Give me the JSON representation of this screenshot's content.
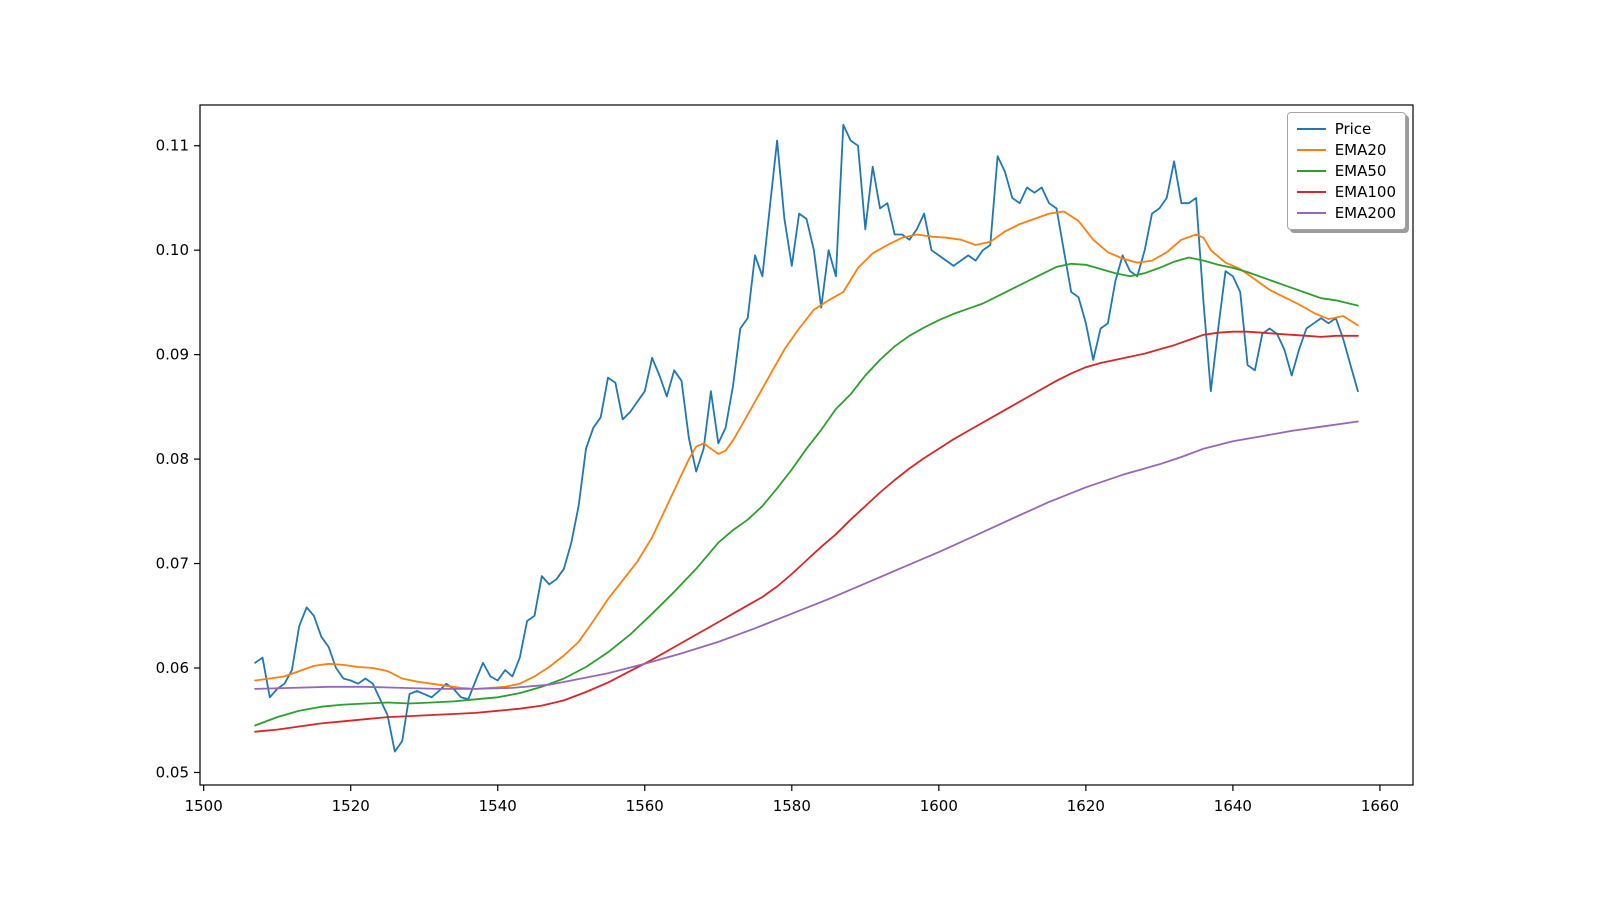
{
  "chart_data": {
    "type": "line",
    "title": "",
    "xlabel": "",
    "ylabel": "",
    "grid": false,
    "legend_position": "upper right",
    "xlim": [
      1499.5,
      1664.5
    ],
    "ylim": [
      0.0488,
      0.1139
    ],
    "x_ticks": [
      {
        "value": 1500,
        "label": "1500"
      },
      {
        "value": 1520,
        "label": "1520"
      },
      {
        "value": 1540,
        "label": "1540"
      },
      {
        "value": 1560,
        "label": "1560"
      },
      {
        "value": 1580,
        "label": "1580"
      },
      {
        "value": 1600,
        "label": "1600"
      },
      {
        "value": 1620,
        "label": "1620"
      },
      {
        "value": 1640,
        "label": "1640"
      },
      {
        "value": 1660,
        "label": "1660"
      }
    ],
    "y_ticks": [
      {
        "value": 0.05,
        "label": "0.05"
      },
      {
        "value": 0.06,
        "label": "0.06"
      },
      {
        "value": 0.07,
        "label": "0.07"
      },
      {
        "value": 0.08,
        "label": "0.08"
      },
      {
        "value": 0.09,
        "label": "0.09"
      },
      {
        "value": 0.1,
        "label": "0.10"
      },
      {
        "value": 0.11,
        "label": "0.11"
      }
    ],
    "series": [
      {
        "name": "Price",
        "color": "#1f77b4",
        "x_start": 1507,
        "x_step": 1,
        "values": [
          0.0605,
          0.061,
          0.0572,
          0.058,
          0.0585,
          0.0598,
          0.064,
          0.0658,
          0.065,
          0.063,
          0.062,
          0.06,
          0.059,
          0.0588,
          0.0585,
          0.059,
          0.0585,
          0.057,
          0.0555,
          0.052,
          0.053,
          0.0575,
          0.0578,
          0.0575,
          0.0572,
          0.0578,
          0.0585,
          0.058,
          0.0572,
          0.057,
          0.0588,
          0.0605,
          0.0592,
          0.0588,
          0.0598,
          0.0592,
          0.061,
          0.0645,
          0.065,
          0.0688,
          0.068,
          0.0685,
          0.0695,
          0.072,
          0.0755,
          0.081,
          0.083,
          0.084,
          0.0878,
          0.0873,
          0.0838,
          0.0845,
          0.0855,
          0.0865,
          0.0897,
          0.088,
          0.086,
          0.0885,
          0.0875,
          0.082,
          0.0788,
          0.081,
          0.0865,
          0.0815,
          0.083,
          0.087,
          0.0925,
          0.0935,
          0.0995,
          0.0975,
          0.104,
          0.1105,
          0.103,
          0.0985,
          0.1035,
          0.103,
          0.1,
          0.0945,
          0.1,
          0.0975,
          0.112,
          0.1105,
          0.11,
          0.102,
          0.108,
          0.104,
          0.1045,
          0.1015,
          0.1015,
          0.101,
          0.102,
          0.1035,
          0.1,
          0.0995,
          0.099,
          0.0985,
          0.099,
          0.0995,
          0.099,
          0.1,
          0.1005,
          0.109,
          0.1075,
          0.105,
          0.1045,
          0.106,
          0.1055,
          0.106,
          0.1045,
          0.104,
          0.1,
          0.096,
          0.0955,
          0.093,
          0.0895,
          0.0925,
          0.093,
          0.097,
          0.0995,
          0.098,
          0.0975,
          0.1,
          0.1035,
          0.104,
          0.105,
          0.1085,
          0.1045,
          0.1045,
          0.105,
          0.095,
          0.0865,
          0.0925,
          0.098,
          0.0975,
          0.096,
          0.089,
          0.0885,
          0.092,
          0.0925,
          0.092,
          0.0905,
          0.088,
          0.0905,
          0.0925,
          0.093,
          0.0935,
          0.093,
          0.0935,
          0.0915,
          0.089,
          0.0865
        ]
      },
      {
        "name": "EMA20",
        "color": "#ff7f0e",
        "x": [
          1507,
          1509,
          1511,
          1513,
          1515,
          1517,
          1519,
          1521,
          1523,
          1525,
          1527,
          1529,
          1531,
          1533,
          1535,
          1537,
          1539,
          1541,
          1543,
          1545,
          1547,
          1549,
          1551,
          1553,
          1555,
          1557,
          1559,
          1561,
          1563,
          1565,
          1566,
          1567,
          1568,
          1569,
          1570,
          1571,
          1572,
          1573,
          1575,
          1577,
          1579,
          1581,
          1583,
          1585,
          1587,
          1589,
          1591,
          1593,
          1595,
          1597,
          1599,
          1601,
          1603,
          1605,
          1607,
          1609,
          1611,
          1613,
          1615,
          1617,
          1619,
          1621,
          1623,
          1625,
          1627,
          1629,
          1631,
          1633,
          1635,
          1636,
          1637,
          1639,
          1641,
          1643,
          1645,
          1647,
          1649,
          1651,
          1653,
          1655,
          1657
        ],
        "y": [
          0.0588,
          0.059,
          0.0592,
          0.0597,
          0.0602,
          0.0604,
          0.0603,
          0.0601,
          0.06,
          0.0597,
          0.059,
          0.0587,
          0.0585,
          0.0583,
          0.0581,
          0.058,
          0.0581,
          0.0582,
          0.0585,
          0.0592,
          0.0601,
          0.0612,
          0.0625,
          0.0645,
          0.0666,
          0.0684,
          0.0702,
          0.0725,
          0.0755,
          0.0785,
          0.08,
          0.0812,
          0.0815,
          0.081,
          0.0805,
          0.0808,
          0.0818,
          0.083,
          0.0855,
          0.088,
          0.0905,
          0.0925,
          0.0943,
          0.0952,
          0.096,
          0.0983,
          0.0997,
          0.1005,
          0.1012,
          0.1015,
          0.1013,
          0.1012,
          0.101,
          0.1005,
          0.1008,
          0.1018,
          0.1025,
          0.103,
          0.1035,
          0.1037,
          0.1028,
          0.101,
          0.0998,
          0.0992,
          0.0988,
          0.099,
          0.0998,
          0.101,
          0.1015,
          0.1012,
          0.1,
          0.0988,
          0.0982,
          0.0972,
          0.0962,
          0.0955,
          0.0948,
          0.094,
          0.0934,
          0.0937,
          0.0928
        ]
      },
      {
        "name": "EMA50",
        "color": "#2ca02c",
        "x": [
          1507,
          1510,
          1513,
          1516,
          1519,
          1522,
          1525,
          1528,
          1531,
          1534,
          1537,
          1540,
          1543,
          1546,
          1549,
          1552,
          1555,
          1558,
          1561,
          1564,
          1567,
          1570,
          1572,
          1574,
          1576,
          1578,
          1580,
          1582,
          1584,
          1586,
          1588,
          1590,
          1592,
          1594,
          1596,
          1598,
          1600,
          1602,
          1604,
          1606,
          1608,
          1610,
          1612,
          1614,
          1616,
          1618,
          1620,
          1622,
          1624,
          1626,
          1628,
          1630,
          1632,
          1634,
          1636,
          1638,
          1640,
          1642,
          1644,
          1646,
          1648,
          1650,
          1652,
          1654,
          1657
        ],
        "y": [
          0.0545,
          0.0553,
          0.0559,
          0.0563,
          0.0565,
          0.0566,
          0.0567,
          0.0566,
          0.0567,
          0.0568,
          0.057,
          0.0572,
          0.0576,
          0.0582,
          0.059,
          0.0601,
          0.0615,
          0.0632,
          0.0652,
          0.0673,
          0.0695,
          0.072,
          0.0732,
          0.0742,
          0.0755,
          0.0772,
          0.079,
          0.081,
          0.0828,
          0.0848,
          0.0862,
          0.088,
          0.0895,
          0.0908,
          0.0918,
          0.0926,
          0.0933,
          0.0939,
          0.0944,
          0.0949,
          0.0956,
          0.0963,
          0.097,
          0.0977,
          0.0984,
          0.0987,
          0.0986,
          0.0982,
          0.0978,
          0.0975,
          0.0978,
          0.0983,
          0.0989,
          0.0993,
          0.099,
          0.0986,
          0.0983,
          0.0979,
          0.0974,
          0.0969,
          0.0964,
          0.0959,
          0.0954,
          0.0952,
          0.0947
        ]
      },
      {
        "name": "EMA100",
        "color": "#d62728",
        "x": [
          1507,
          1510,
          1513,
          1516,
          1519,
          1522,
          1525,
          1528,
          1531,
          1534,
          1537,
          1540,
          1543,
          1546,
          1549,
          1552,
          1555,
          1558,
          1561,
          1564,
          1567,
          1570,
          1572,
          1574,
          1576,
          1578,
          1580,
          1582,
          1584,
          1586,
          1588,
          1590,
          1592,
          1594,
          1596,
          1598,
          1600,
          1602,
          1604,
          1606,
          1608,
          1610,
          1612,
          1614,
          1616,
          1618,
          1620,
          1622,
          1624,
          1626,
          1628,
          1630,
          1632,
          1634,
          1636,
          1638,
          1640,
          1642,
          1644,
          1646,
          1648,
          1650,
          1652,
          1654,
          1657
        ],
        "y": [
          0.0539,
          0.0541,
          0.0544,
          0.0547,
          0.0549,
          0.0551,
          0.0553,
          0.0554,
          0.0555,
          0.0556,
          0.0557,
          0.0559,
          0.0561,
          0.0564,
          0.0569,
          0.0577,
          0.0586,
          0.0597,
          0.0608,
          0.062,
          0.0632,
          0.0644,
          0.0652,
          0.066,
          0.0668,
          0.0678,
          0.069,
          0.0703,
          0.0716,
          0.0728,
          0.0742,
          0.0755,
          0.0768,
          0.078,
          0.0791,
          0.0801,
          0.081,
          0.0819,
          0.0827,
          0.0835,
          0.0843,
          0.0851,
          0.0859,
          0.0867,
          0.0875,
          0.0882,
          0.0888,
          0.0892,
          0.0895,
          0.0898,
          0.0901,
          0.0905,
          0.0909,
          0.0914,
          0.0919,
          0.0921,
          0.0922,
          0.0922,
          0.0921,
          0.092,
          0.0919,
          0.0918,
          0.0917,
          0.0918,
          0.0918
        ]
      },
      {
        "name": "EMA200",
        "color": "#9467bd",
        "x": [
          1507,
          1512,
          1517,
          1522,
          1527,
          1532,
          1537,
          1542,
          1547,
          1550,
          1555,
          1560,
          1565,
          1570,
          1575,
          1580,
          1585,
          1590,
          1595,
          1600,
          1605,
          1610,
          1615,
          1620,
          1625,
          1630,
          1633,
          1636,
          1640,
          1644,
          1648,
          1652,
          1657
        ],
        "y": [
          0.058,
          0.0581,
          0.0582,
          0.0582,
          0.0581,
          0.058,
          0.058,
          0.0581,
          0.0584,
          0.0588,
          0.0595,
          0.0604,
          0.0614,
          0.0625,
          0.0638,
          0.0652,
          0.0666,
          0.0681,
          0.0696,
          0.0711,
          0.0727,
          0.0743,
          0.0759,
          0.0773,
          0.0785,
          0.0795,
          0.0802,
          0.081,
          0.0817,
          0.0822,
          0.0827,
          0.0831,
          0.0836
        ]
      }
    ]
  }
}
